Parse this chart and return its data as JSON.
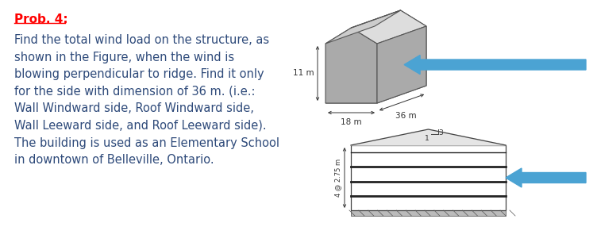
{
  "title": "Prob. 4:",
  "title_color": "#FF0000",
  "body_text": "Find the total wind load on the structure, as\nshown in the Figure, when the wind is\nblowing perpendicular to ridge. Find it only\nfor the side with dimension of 36 m. (i.e.:\nWall Windward side, Roof Windward side,\nWall Leeward side, and Roof Leeward side).\nThe building is used as an Elementary School\nin downtown of Belleville, Ontario.",
  "text_color": "#2E4A7A",
  "bg_color": "#FFFFFF",
  "arrow_color": "#4BA3D3",
  "dim_label_11m": "11 m",
  "dim_label_18m": "18 m",
  "dim_label_36m": "36 m",
  "dim_label_slope": "3",
  "dim_label_1": "1",
  "dim_label_floors": "4 @ 2.75 m",
  "font_size_title": 11,
  "font_size_body": 10.5,
  "font_size_dim": 7.5
}
